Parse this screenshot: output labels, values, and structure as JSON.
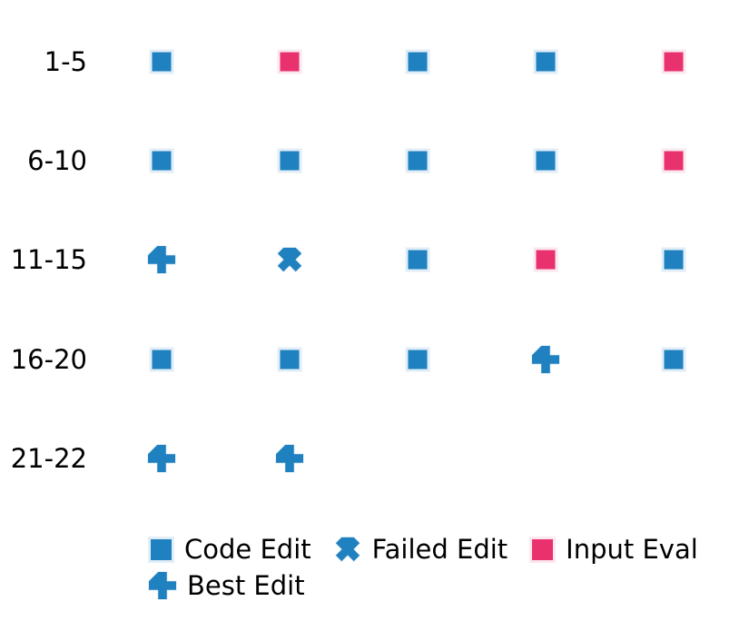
{
  "colors": {
    "blue": "#1f81bf",
    "pink": "#e9316e",
    "blue_halo": "#e2eef7",
    "pink_halo": "#fbe7ef",
    "text": "#000000",
    "background": "#ffffff"
  },
  "marker_semantics": {
    "code": "Code Edit",
    "failed": "Failed Edit",
    "input": "Input Eval",
    "best": "Best Edit"
  },
  "chart_data": {
    "type": "scatter",
    "title": "",
    "xlabel": "",
    "ylabel": "",
    "grid": false,
    "axes_visible": false,
    "columns": 5,
    "row_labels": [
      "1-5",
      "6-10",
      "11-15",
      "16-20",
      "21-22"
    ],
    "rows": [
      {
        "label": "1-5",
        "cells": [
          "code",
          "input",
          "code",
          "code",
          "input"
        ]
      },
      {
        "label": "6-10",
        "cells": [
          "code",
          "code",
          "code",
          "code",
          "input"
        ]
      },
      {
        "label": "11-15",
        "cells": [
          "best",
          "failed",
          "code",
          "input",
          "code"
        ]
      },
      {
        "label": "16-20",
        "cells": [
          "code",
          "code",
          "code",
          "best",
          "code"
        ]
      },
      {
        "label": "21-22",
        "cells": [
          "best",
          "best",
          null,
          null,
          null
        ]
      }
    ],
    "legend_position": "bottom",
    "legend_columns": 3,
    "legend": [
      {
        "marker": "square",
        "color_key": "blue",
        "label": "Code Edit"
      },
      {
        "marker": "x",
        "color_key": "blue",
        "label": "Failed Edit"
      },
      {
        "marker": "square",
        "color_key": "pink",
        "label": "Input Eval"
      },
      {
        "marker": "plus",
        "color_key": "blue",
        "label": "Best Edit"
      }
    ]
  }
}
